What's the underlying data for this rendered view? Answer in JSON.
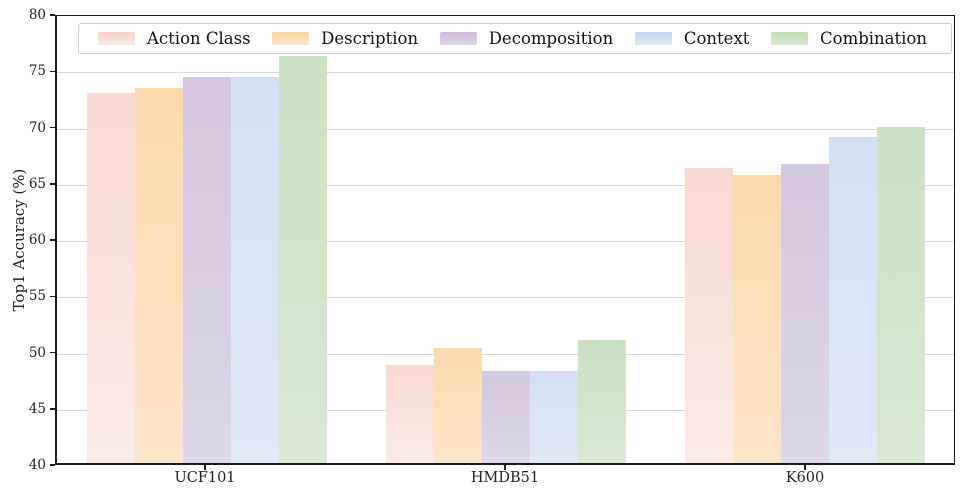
{
  "figure": {
    "background": "#ffffff",
    "axis_color": "#1a1a1a",
    "grid_color": "#d9d9d9",
    "legend_border_color": "#cccccc",
    "text_color": "#1f1f1f"
  },
  "chart_data": {
    "type": "bar",
    "title": "",
    "xlabel": "",
    "ylabel": "Top1 Accuracy (%)",
    "ylim": [
      40,
      80
    ],
    "yticks": [
      40,
      45,
      50,
      55,
      60,
      65,
      70,
      75,
      80
    ],
    "grid": "horizontal",
    "legend_position": "top",
    "categories": [
      "UCF101",
      "HMDB51",
      "K600"
    ],
    "series": [
      {
        "name": "Action Class",
        "values": [
          72.9,
          48.7,
          66.2
        ],
        "swatch_color": "#f7d3c8",
        "bar_top_color": "#f8d9d1",
        "bar_bottom_color": "#fbeae6"
      },
      {
        "name": "Description",
        "values": [
          73.3,
          50.2,
          65.6
        ],
        "swatch_color": "#fbd3a2",
        "bar_top_color": "#fcd9ac",
        "bar_bottom_color": "#fde5c9"
      },
      {
        "name": "Decomposition",
        "values": [
          74.3,
          48.2,
          66.6
        ],
        "swatch_color": "#ccbada",
        "bar_top_color": "#d4c7df",
        "bar_bottom_color": "#dfd6e9"
      },
      {
        "name": "Context",
        "values": [
          74.3,
          48.2,
          69.0
        ],
        "swatch_color": "#c3d7f0",
        "bar_top_color": "#d3e0f4",
        "bar_bottom_color": "#e0e9f8"
      },
      {
        "name": "Combination",
        "values": [
          76.2,
          50.9,
          69.9
        ],
        "swatch_color": "#bedcb3",
        "bar_top_color": "#cbe1c3",
        "bar_bottom_color": "#d9e9d3"
      }
    ]
  }
}
